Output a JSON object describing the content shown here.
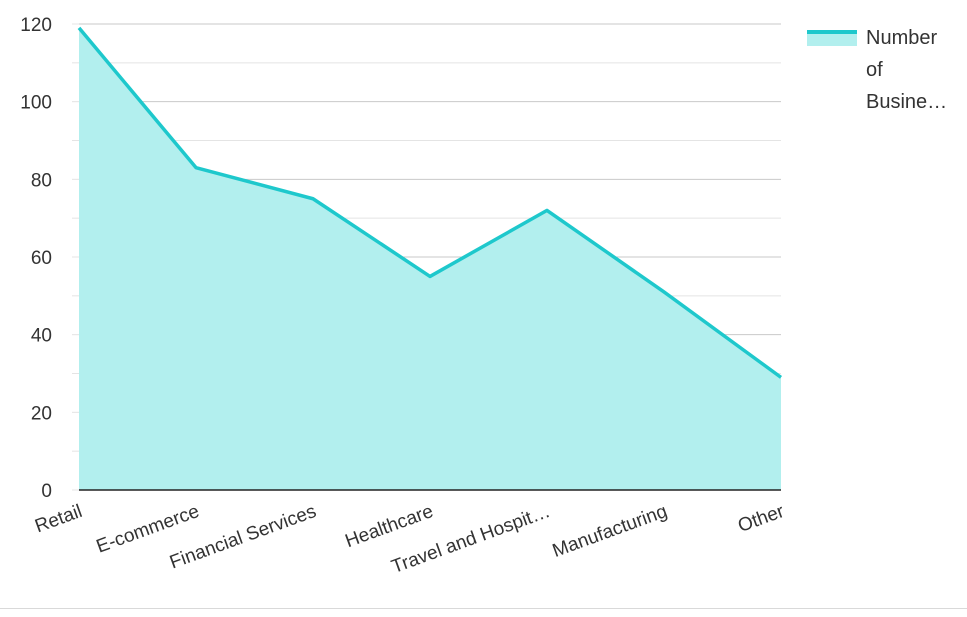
{
  "chart_data": {
    "type": "area",
    "categories": [
      "Retail",
      "E-commerce",
      "Financial Services",
      "Healthcare",
      "Travel and Hospit…",
      "Manufacturing",
      "Other"
    ],
    "series": [
      {
        "name": "Number of Busine…",
        "values": [
          119,
          83,
          75,
          55,
          72,
          51,
          29
        ]
      }
    ],
    "yticks": [
      "0",
      "20",
      "40",
      "60",
      "80",
      "100",
      "120"
    ],
    "ylim": [
      0,
      120
    ],
    "grid": true,
    "legend": {
      "position": "top-right",
      "lines": [
        "Number",
        "of",
        "Busine…"
      ]
    },
    "colors": {
      "line": "#1ec8cc",
      "fill": "#b2efee",
      "grid": "#c9c9c9",
      "axis": "#222222"
    }
  }
}
